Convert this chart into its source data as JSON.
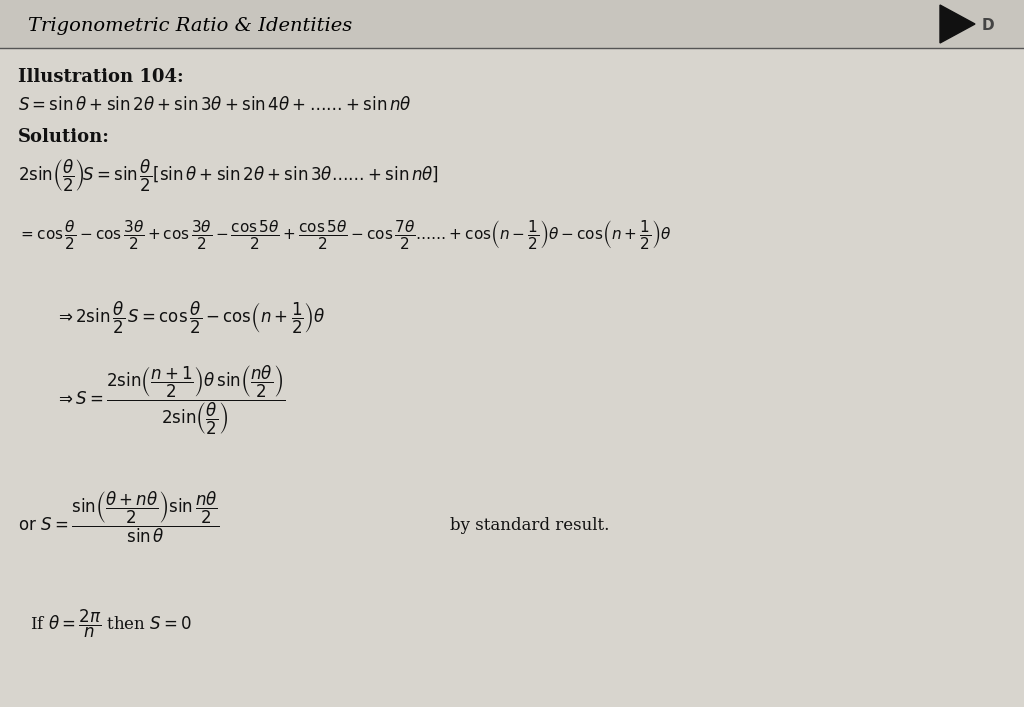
{
  "bg_color": "#d8d5ce",
  "header_bg": "#c8c5be",
  "text_color": "#111111",
  "header_color": "#000000",
  "line_color": "#555555",
  "title": "Trigonometric Ratio & Identities",
  "illustration": "Illustration 104:",
  "problem": "$S = \\sin\\theta + \\sin2\\theta + \\sin3\\theta + \\sin4\\theta + \\ldots\\ldots + \\sin n\\theta$",
  "solution": "Solution:",
  "logo_dark": "#111122"
}
